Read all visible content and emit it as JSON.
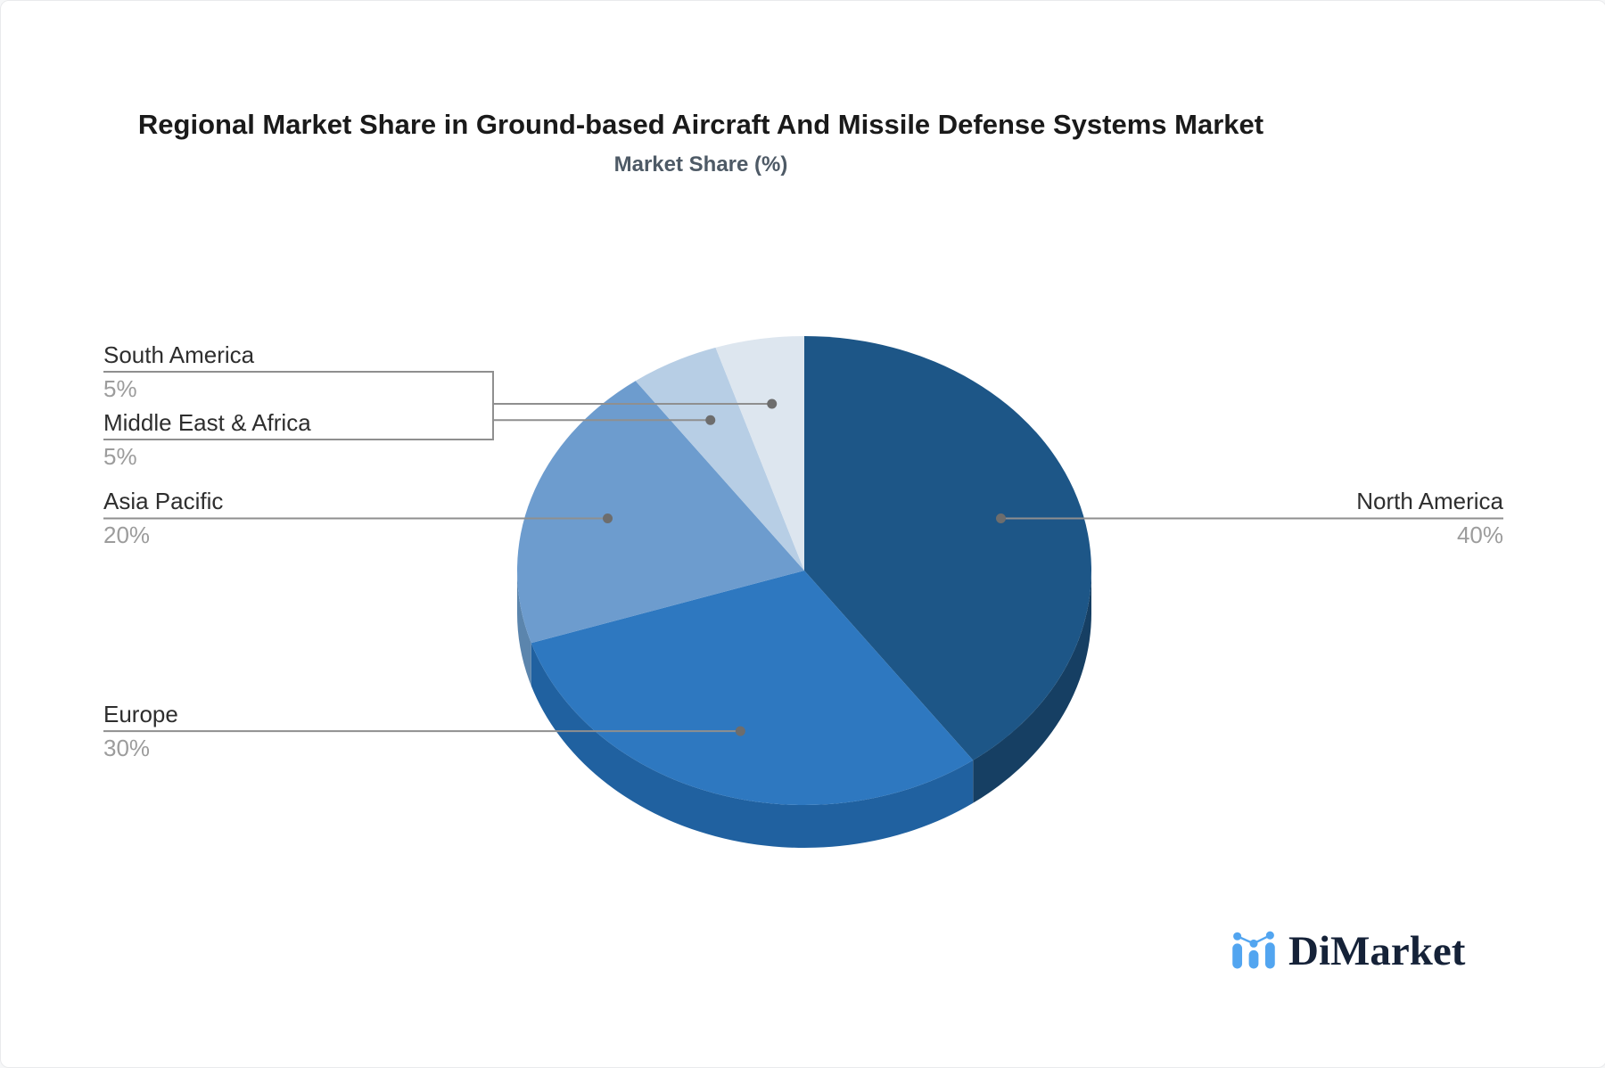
{
  "chart_data": {
    "type": "pie",
    "style": "3d-pie-with-leader-labels",
    "title": "Regional Market Share in Ground-based Aircraft And Missile Defense Systems Market",
    "subtitle": "Market Share (%)",
    "unit": "%",
    "order": "clockwise-from-12-oclock",
    "segments": [
      {
        "label": "North America",
        "value": 40,
        "pct": "40%",
        "color": "#1d5687",
        "side_color": "#163f63",
        "label_side": "right"
      },
      {
        "label": "Europe",
        "value": 30,
        "pct": "30%",
        "color": "#2e78c0",
        "side_color": "#2061a0",
        "label_side": "left"
      },
      {
        "label": "Asia Pacific",
        "value": 20,
        "pct": "20%",
        "color": "#6d9cce",
        "side_color": "#5b85ad",
        "label_side": "left"
      },
      {
        "label": "Middle East & Africa",
        "value": 5,
        "pct": "5%",
        "color": "#b7cee5",
        "side_color": "#9cb6cf",
        "label_side": "left-bracket"
      },
      {
        "label": "South America",
        "value": 5,
        "pct": "5%",
        "color": "#dde6ef",
        "side_color": "#c3cedb",
        "label_side": "left-bracket"
      }
    ],
    "colors": {
      "leader_line": "#8f8f8f",
      "leader_dot": "#6d6d6d",
      "label_text": "#2e2e2e",
      "pct_text": "#9c9c9c",
      "title_text": "#1a1a1a",
      "subtitle_text": "#4e5a66"
    },
    "legend": "none",
    "grid": "off"
  },
  "branding": {
    "name": "DiMarket",
    "icon": "bar-chart-logo-icon",
    "icon_color": "#52a5f0",
    "text_color": "#152238"
  }
}
